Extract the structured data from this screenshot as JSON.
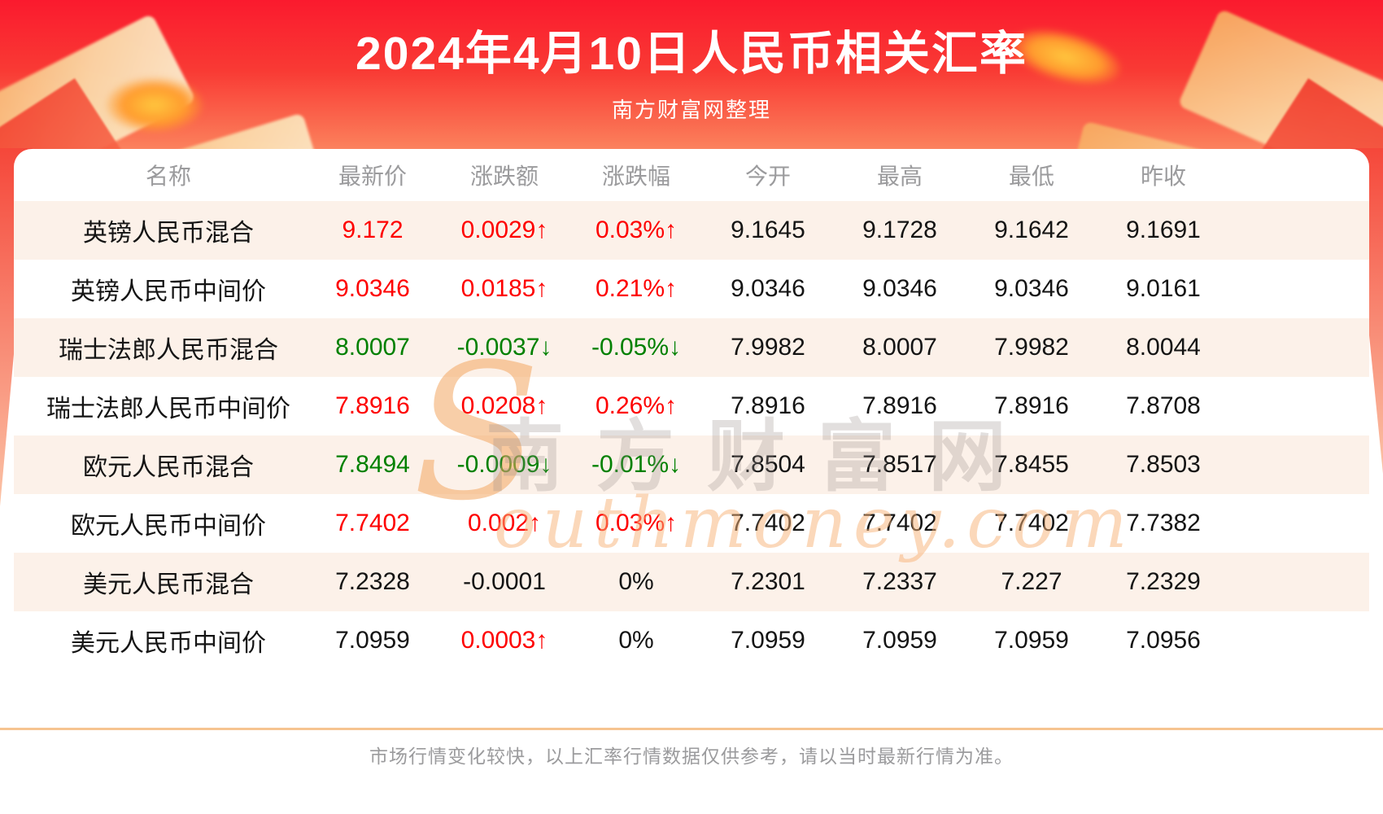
{
  "header": {
    "title": "2024年4月10日人民币相关汇率",
    "subtitle": "南方财富网整理"
  },
  "chart_data": {
    "type": "table",
    "title": "2024年4月10日人民币相关汇率",
    "columns": [
      "名称",
      "最新价",
      "涨跌额",
      "涨跌幅",
      "今开",
      "最高",
      "最低",
      "昨收"
    ],
    "rows": [
      {
        "name": "英镑人民币混合",
        "latest": "9.172",
        "latest_trend": "up",
        "change": "0.0029↑",
        "change_trend": "up",
        "pct": "0.03%↑",
        "pct_trend": "up",
        "open": "9.1645",
        "high": "9.1728",
        "low": "9.1642",
        "prev": "9.1691"
      },
      {
        "name": "英镑人民币中间价",
        "latest": "9.0346",
        "latest_trend": "up",
        "change": "0.0185↑",
        "change_trend": "up",
        "pct": "0.21%↑",
        "pct_trend": "up",
        "open": "9.0346",
        "high": "9.0346",
        "low": "9.0346",
        "prev": "9.0161"
      },
      {
        "name": "瑞士法郎人民币混合",
        "latest": "8.0007",
        "latest_trend": "down",
        "change": "-0.0037↓",
        "change_trend": "down",
        "pct": "-0.05%↓",
        "pct_trend": "down",
        "open": "7.9982",
        "high": "8.0007",
        "low": "7.9982",
        "prev": "8.0044"
      },
      {
        "name": "瑞士法郎人民币中间价",
        "latest": "7.8916",
        "latest_trend": "up",
        "change": "0.0208↑",
        "change_trend": "up",
        "pct": "0.26%↑",
        "pct_trend": "up",
        "open": "7.8916",
        "high": "7.8916",
        "low": "7.8916",
        "prev": "7.8708"
      },
      {
        "name": "欧元人民币混合",
        "latest": "7.8494",
        "latest_trend": "down",
        "change": "-0.0009↓",
        "change_trend": "down",
        "pct": "-0.01%↓",
        "pct_trend": "down",
        "open": "7.8504",
        "high": "7.8517",
        "low": "7.8455",
        "prev": "7.8503"
      },
      {
        "name": "欧元人民币中间价",
        "latest": "7.7402",
        "latest_trend": "up",
        "change": "0.002↑",
        "change_trend": "up",
        "pct": "0.03%↑",
        "pct_trend": "up",
        "open": "7.7402",
        "high": "7.7402",
        "low": "7.7402",
        "prev": "7.7382"
      },
      {
        "name": "美元人民币混合",
        "latest": "7.2328",
        "latest_trend": "flat",
        "change": "-0.0001",
        "change_trend": "flat",
        "pct": "0%",
        "pct_trend": "flat",
        "open": "7.2301",
        "high": "7.2337",
        "low": "7.227",
        "prev": "7.2329"
      },
      {
        "name": "美元人民币中间价",
        "latest": "7.0959",
        "latest_trend": "flat",
        "change": "0.0003↑",
        "change_trend": "up",
        "pct": "0%",
        "pct_trend": "flat",
        "open": "7.0959",
        "high": "7.0959",
        "low": "7.0959",
        "prev": "7.0956"
      }
    ]
  },
  "watermark": {
    "initial": "S",
    "cn": "南方财富网",
    "en": "outhmoney.com"
  },
  "footer": {
    "note": "市场行情变化较快，以上汇率行情数据仅供参考，请以当时最新行情为准。"
  },
  "colors": {
    "up": "#fe0000",
    "down": "#008000",
    "flat": "#141414"
  }
}
